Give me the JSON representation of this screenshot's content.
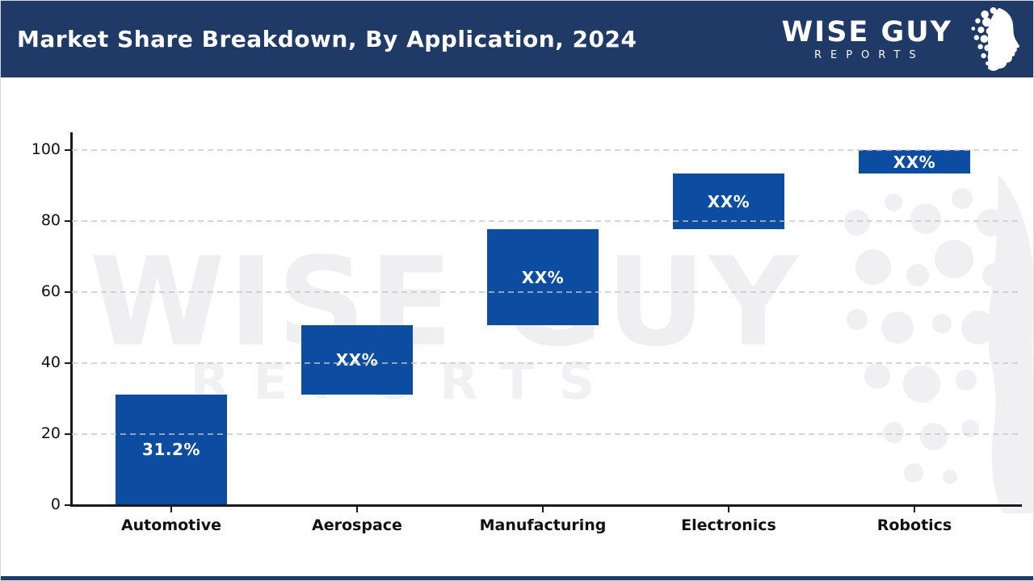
{
  "header": {
    "title": "Market Share Breakdown, By Application, 2024",
    "brand": {
      "line1": "WISE GUY",
      "line2": "REPORTS"
    }
  },
  "watermark": {
    "line1": "WISE GUY",
    "line2": "REPORTS"
  },
  "colors": {
    "header_bg": "#1f3a66",
    "footer_bg": "#1f3a66",
    "bar": "#0c4da2",
    "bar_label": "#ffffff",
    "grid": "#d4d4d4",
    "axis": "#1a1a1a",
    "watermark": "#efeff1"
  },
  "chart_data": {
    "type": "bar",
    "subtype": "waterfall-breakdown",
    "title": "Market Share Breakdown, By Application, 2024",
    "categories": [
      "Automotive",
      "Aerospace",
      "Manufacturing",
      "Electronics",
      "Robotics"
    ],
    "segments": [
      {
        "category": "Automotive",
        "start": 0,
        "end": 31.2,
        "value": 31.2,
        "label": "31.2%"
      },
      {
        "category": "Aerospace",
        "start": 31.2,
        "end": 50.6,
        "value": 19.4,
        "label": "XX%"
      },
      {
        "category": "Manufacturing",
        "start": 50.6,
        "end": 77.7,
        "value": 27.1,
        "label": "XX%"
      },
      {
        "category": "Electronics",
        "start": 77.7,
        "end": 93.4,
        "value": 15.7,
        "label": "XX%"
      },
      {
        "category": "Robotics",
        "start": 93.4,
        "end": 100,
        "value": 6.6,
        "label": "XX%"
      }
    ],
    "yticks": [
      0,
      20,
      40,
      60,
      80,
      100
    ],
    "ylim": [
      0,
      105
    ],
    "xlabel": "",
    "ylabel": "",
    "grid": "horizontal-dashed",
    "legend": "none"
  }
}
